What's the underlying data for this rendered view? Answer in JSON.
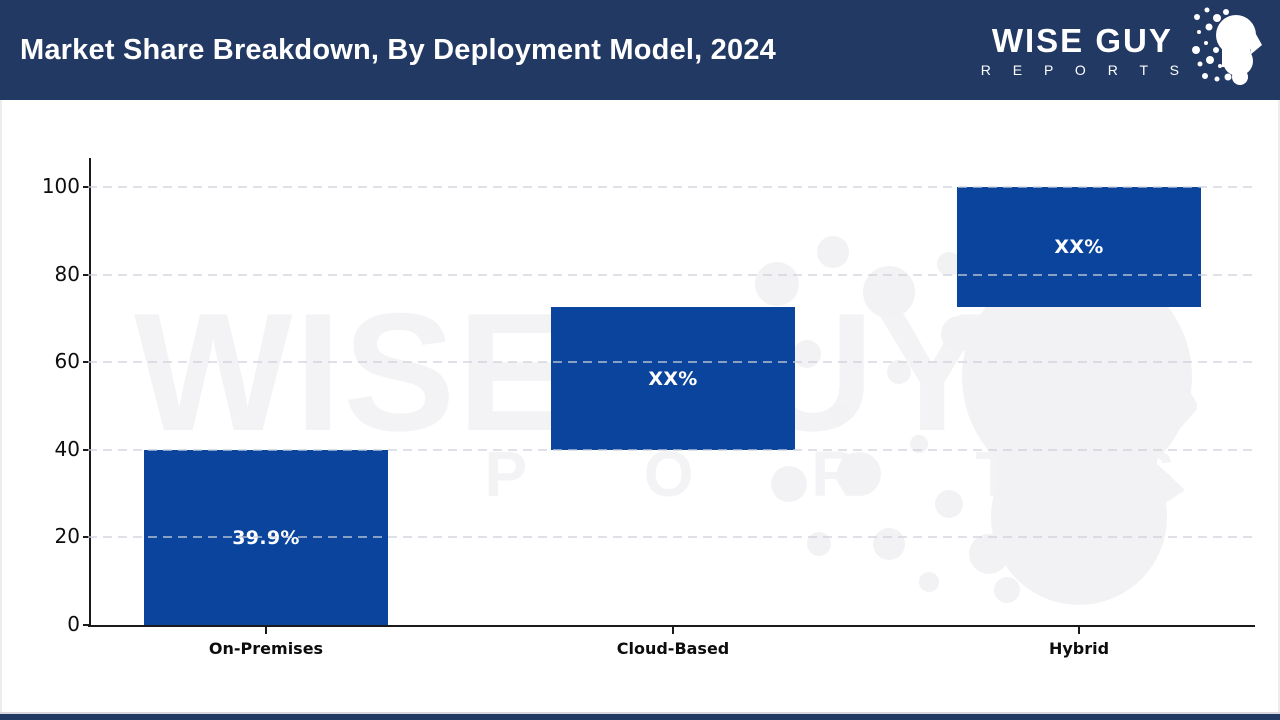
{
  "header": {
    "title": "Market Share Breakdown, By Deployment Model, 2024",
    "logo": {
      "line1": "WISE GUY",
      "line2": "R E P O R T S"
    }
  },
  "watermark": {
    "line1": "WISE GUY",
    "line2": "R E P O R T S"
  },
  "colors": {
    "header_bg": "#223963",
    "footer_bg": "#223963",
    "bar": "#0a449d",
    "axis": "#1a1a1a",
    "grid": "#d9dde4",
    "watermark": "#f3f3f5",
    "title_text": "#ffffff",
    "bar_label_text": "#ffffff"
  },
  "chart_data": {
    "type": "bar",
    "subtype": "waterfall-stacked",
    "title": "Market Share Breakdown, By Deployment Model, 2024",
    "categories": [
      "On-Premises",
      "Cloud-Based",
      "Hybrid"
    ],
    "segments": [
      {
        "category": "On-Premises",
        "start": 0,
        "end": 39.9,
        "label": "39.9%"
      },
      {
        "category": "Cloud-Based",
        "start": 39.9,
        "end": 72.5,
        "label": "XX%"
      },
      {
        "category": "Hybrid",
        "start": 72.5,
        "end": 100,
        "label": "XX%"
      }
    ],
    "xlabel": "",
    "ylabel": "",
    "ylim": [
      0,
      100
    ],
    "yticks": [
      0,
      20,
      40,
      60,
      80,
      100
    ],
    "grid": "horizontal-dashed",
    "legend": "none"
  }
}
